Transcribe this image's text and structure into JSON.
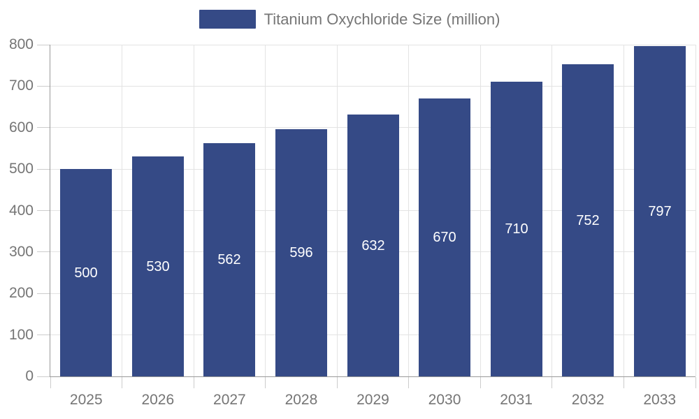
{
  "legend": {
    "label": "Titanium Oxychloride Size (million)"
  },
  "colors": {
    "bar": "#354a86",
    "grid": "#e3e3e3",
    "tick": "#cccccc",
    "axis": "#999999",
    "axis_text": "#757575",
    "legend_text": "#767676",
    "bar_label_text": "#ffffff",
    "background": "#ffffff"
  },
  "chart_data": {
    "type": "bar",
    "title": "Titanium Oxychloride Size (million)",
    "series_name": "Titanium Oxychloride Size (million)",
    "categories": [
      "2025",
      "2026",
      "2027",
      "2028",
      "2029",
      "2030",
      "2031",
      "2032",
      "2033"
    ],
    "values": [
      500,
      530,
      562,
      596,
      632,
      670,
      710,
      752,
      797
    ],
    "xlabel": "",
    "ylabel": "",
    "ylim": [
      0,
      800
    ],
    "yticks": [
      0,
      100,
      200,
      300,
      400,
      500,
      600,
      700,
      800
    ],
    "grid": true,
    "legend_position": "top",
    "value_labels": "inside-center"
  }
}
